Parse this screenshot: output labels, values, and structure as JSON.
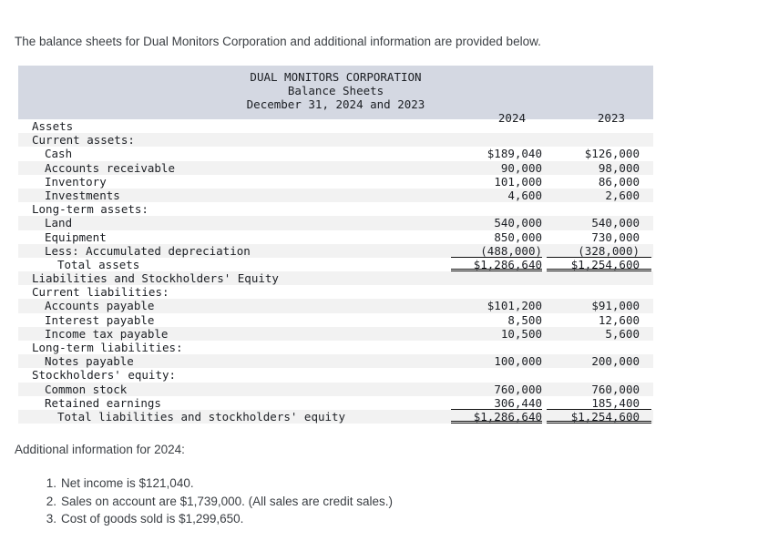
{
  "page": {
    "intro": "The balance sheets for Dual Monitors Corporation and additional information are provided below."
  },
  "balance_sheet": {
    "company": "DUAL MONITORS CORPORATION",
    "statement": "Balance Sheets",
    "period": "December 31, 2024 and 2023",
    "columns": {
      "col2024": "2024",
      "col2023": "2023"
    },
    "colors": {
      "header_bg": "#d4d8e2",
      "stripe_bg": "#f2f2f2"
    },
    "rows": [
      {
        "label": "Assets",
        "indent": 0,
        "v2024": "",
        "v2023": "",
        "rule": ""
      },
      {
        "label": "Current assets:",
        "indent": 0,
        "v2024": "",
        "v2023": "",
        "rule": ""
      },
      {
        "label": "Cash",
        "indent": 1,
        "v2024": "$189,040",
        "v2023": "$126,000",
        "rule": ""
      },
      {
        "label": "Accounts receivable",
        "indent": 1,
        "v2024": "90,000",
        "v2023": "98,000",
        "rule": ""
      },
      {
        "label": "Inventory",
        "indent": 1,
        "v2024": "101,000",
        "v2023": "86,000",
        "rule": ""
      },
      {
        "label": "Investments",
        "indent": 1,
        "v2024": "4,600",
        "v2023": "2,600",
        "rule": ""
      },
      {
        "label": "Long-term assets:",
        "indent": 0,
        "v2024": "",
        "v2023": "",
        "rule": ""
      },
      {
        "label": "Land",
        "indent": 1,
        "v2024": "540,000",
        "v2023": "540,000",
        "rule": ""
      },
      {
        "label": "Equipment",
        "indent": 1,
        "v2024": "850,000",
        "v2023": "730,000",
        "rule": ""
      },
      {
        "label": "Less: Accumulated depreciation",
        "indent": 1,
        "v2024": "(488,000)",
        "v2023": "(328,000)",
        "rule": "single"
      },
      {
        "label": "Total assets",
        "indent": 2,
        "v2024": "$1,286,640",
        "v2023": "$1,254,600",
        "rule": "double"
      },
      {
        "label": "Liabilities and Stockholders' Equity",
        "indent": 0,
        "v2024": "",
        "v2023": "",
        "rule": ""
      },
      {
        "label": "Current liabilities:",
        "indent": 0,
        "v2024": "",
        "v2023": "",
        "rule": ""
      },
      {
        "label": "Accounts payable",
        "indent": 1,
        "v2024": "$101,200",
        "v2023": "$91,000",
        "rule": ""
      },
      {
        "label": "Interest payable",
        "indent": 1,
        "v2024": "8,500",
        "v2023": "12,600",
        "rule": ""
      },
      {
        "label": "Income tax payable",
        "indent": 1,
        "v2024": "10,500",
        "v2023": "5,600",
        "rule": ""
      },
      {
        "label": "Long-term liabilities:",
        "indent": 0,
        "v2024": "",
        "v2023": "",
        "rule": ""
      },
      {
        "label": "Notes payable",
        "indent": 1,
        "v2024": "100,000",
        "v2023": "200,000",
        "rule": ""
      },
      {
        "label": "Stockholders' equity:",
        "indent": 0,
        "v2024": "",
        "v2023": "",
        "rule": ""
      },
      {
        "label": "Common stock",
        "indent": 1,
        "v2024": "760,000",
        "v2023": "760,000",
        "rule": ""
      },
      {
        "label": "Retained earnings",
        "indent": 1,
        "v2024": "306,440",
        "v2023": "185,400",
        "rule": "single"
      },
      {
        "label": "Total liabilities and stockholders' equity",
        "indent": 2,
        "v2024": "$1,286,640",
        "v2023": "$1,254,600",
        "rule": "double"
      }
    ]
  },
  "additional_info": {
    "heading": "Additional information for 2024:",
    "items": [
      {
        "num": "1.",
        "text": "Net income is $121,040."
      },
      {
        "num": "2.",
        "text": "Sales on account are $1,739,000. (All sales are credit sales.)"
      },
      {
        "num": "3.",
        "text": "Cost of goods sold is $1,299,650."
      }
    ]
  }
}
